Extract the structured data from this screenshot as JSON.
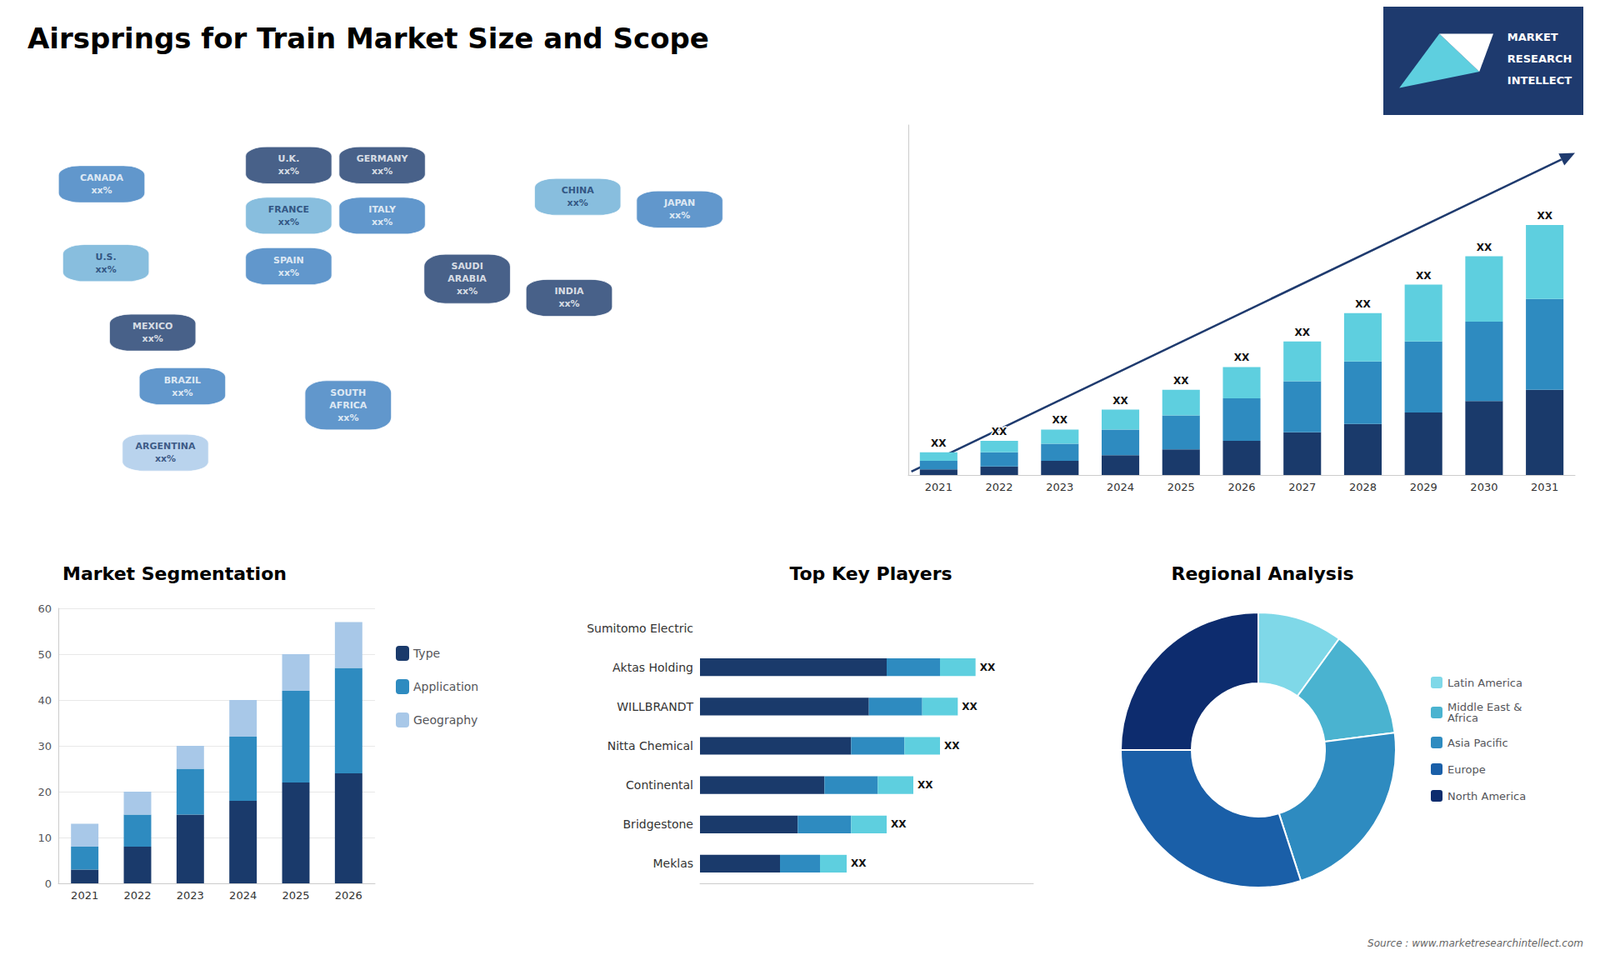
{
  "chart_data": [
    {
      "type": "map",
      "title": "Airsprings for Train Market Size and Scope",
      "categories": [
        "CANADA",
        "U.S.",
        "MEXICO",
        "BRAZIL",
        "ARGENTINA",
        "U.K.",
        "FRANCE",
        "SPAIN",
        "GERMANY",
        "ITALY",
        "SAUDI\nARABIA",
        "SOUTH\nAFRICA",
        "CHINA",
        "INDIA",
        "JAPAN"
      ],
      "value_labels": [
        "xx%",
        "xx%",
        "xx%",
        "xx%",
        "xx%",
        "xx%",
        "xx%",
        "xx%",
        "xx%",
        "xx%",
        "xx%",
        "xx%",
        "xx%",
        "xx%",
        "xx%"
      ],
      "colors": [
        "#3a7dbf",
        "#6aaed6",
        "#1a3a6b",
        "#3a7dbf",
        "#a8c8e8",
        "#1a3a6b",
        "#6aaed6",
        "#3a7dbf",
        "#1a3a6b",
        "#3a7dbf",
        "#1a3a6b",
        "#3a7dbf",
        "#6aaed6",
        "#1a3a6b",
        "#3a7dbf"
      ],
      "annotations": [
        "MARKET",
        "RESEARCH",
        "INTELLECT",
        "Source : www.marketresearchintellect.com"
      ]
    },
    {
      "type": "bar",
      "stacked": true,
      "categories": [
        2021,
        2022,
        2023,
        2024,
        2025,
        2026,
        2027,
        2028,
        2029,
        2030,
        2031
      ],
      "series": [
        {
          "color": "#1a3a6b",
          "values": [
            2,
            3,
            5,
            7,
            9,
            12,
            15,
            18,
            22,
            26,
            30
          ]
        },
        {
          "color": "#2e8bc0",
          "values": [
            3,
            5,
            6,
            9,
            12,
            15,
            18,
            22,
            25,
            28,
            32
          ]
        },
        {
          "color": "#5ecfdf",
          "values": [
            3,
            4,
            5,
            7,
            9,
            11,
            14,
            17,
            20,
            23,
            26
          ]
        }
      ],
      "annotations": [
        "XX",
        "XX",
        "XX",
        "XX",
        "XX",
        "XX",
        "XX",
        "XX",
        "XX",
        "XX",
        "XX"
      ],
      "ylim": [
        0,
        123.2
      ],
      "tick_labels": "x",
      "grid": false
    },
    {
      "type": "bar",
      "stacked": true,
      "title": "Market Segmentation",
      "categories": [
        2021,
        2022,
        2023,
        2024,
        2025,
        2026
      ],
      "series": [
        {
          "name": "Type",
          "color": "#1a3a6b",
          "values": [
            3,
            8,
            15,
            18,
            22,
            24
          ]
        },
        {
          "name": "Application",
          "color": "#2e8bc0",
          "values": [
            5,
            7,
            10,
            14,
            20,
            23
          ]
        },
        {
          "name": "Geography",
          "color": "#a8c8e8",
          "values": [
            5,
            5,
            5,
            8,
            8,
            10
          ]
        }
      ],
      "ylim": [
        0,
        60
      ],
      "yticks": [
        0,
        10,
        20,
        30,
        40,
        50,
        60
      ],
      "grid": true,
      "legend": "right"
    },
    {
      "type": "bar",
      "orientation": "horizontal",
      "stacked": true,
      "title": "Top Key Players",
      "categories": [
        "Sumitomo Electric",
        "Aktas Holding",
        "WILLBRANDT",
        "Nitta Chemical",
        "Continental",
        "Bridgestone",
        "Meklas"
      ],
      "series": [
        {
          "color": "#1a3a6b",
          "values": [
            null,
            42,
            38,
            34,
            28,
            22,
            18
          ]
        },
        {
          "color": "#2e8bc0",
          "values": [
            null,
            12,
            12,
            12,
            12,
            12,
            9
          ]
        },
        {
          "color": "#5ecfdf",
          "values": [
            null,
            8,
            8,
            8,
            8,
            8,
            6
          ]
        }
      ],
      "annotations": [
        null,
        "XX",
        "XX",
        "XX",
        "XX",
        "XX",
        "XX"
      ],
      "xlim": [
        0,
        75
      ],
      "tick_labels": "y",
      "grid": false
    },
    {
      "type": "pie",
      "title": "Regional Analysis",
      "categories": [
        "Latin America",
        "Middle East &\nAfrica",
        "Asia Pacific",
        "Europe",
        "North America"
      ],
      "values": [
        10,
        13,
        22,
        30,
        25
      ],
      "colors": [
        "#7fd8e8",
        "#4ab3d0",
        "#2e8bc0",
        "#1a5fa8",
        "#0d2c6e"
      ],
      "legend": "right"
    }
  ]
}
